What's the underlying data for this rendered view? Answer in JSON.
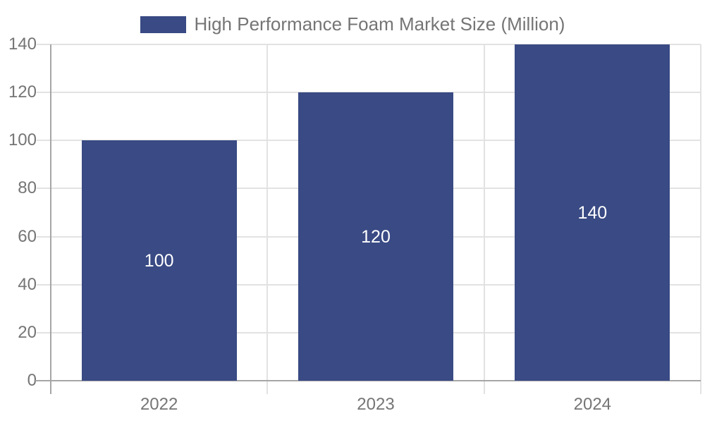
{
  "chart_data": {
    "type": "bar",
    "title": "",
    "legend_label": "High Performance Foam Market Size (Million)",
    "legend_position": "top-center",
    "categories": [
      "2022",
      "2023",
      "2024"
    ],
    "values": [
      100,
      120,
      140
    ],
    "series": [
      {
        "name": "High Performance Foam Market Size (Million)",
        "values": [
          100,
          120,
          140
        ]
      }
    ],
    "xlabel": "",
    "ylabel": "",
    "ylim": [
      0,
      140
    ],
    "yticks": [
      0,
      20,
      40,
      60,
      80,
      100,
      120,
      140
    ],
    "grid": true,
    "bar_value_labels": [
      "100",
      "120",
      "140"
    ],
    "bar_labels_position": "inside-center",
    "colors": {
      "bar": "#394A84",
      "bar_label": "#FFFFFF",
      "grid": "#E2E2E2",
      "axis": "#A6A6A6",
      "text": "#757575",
      "background": "#FFFFFF"
    }
  }
}
